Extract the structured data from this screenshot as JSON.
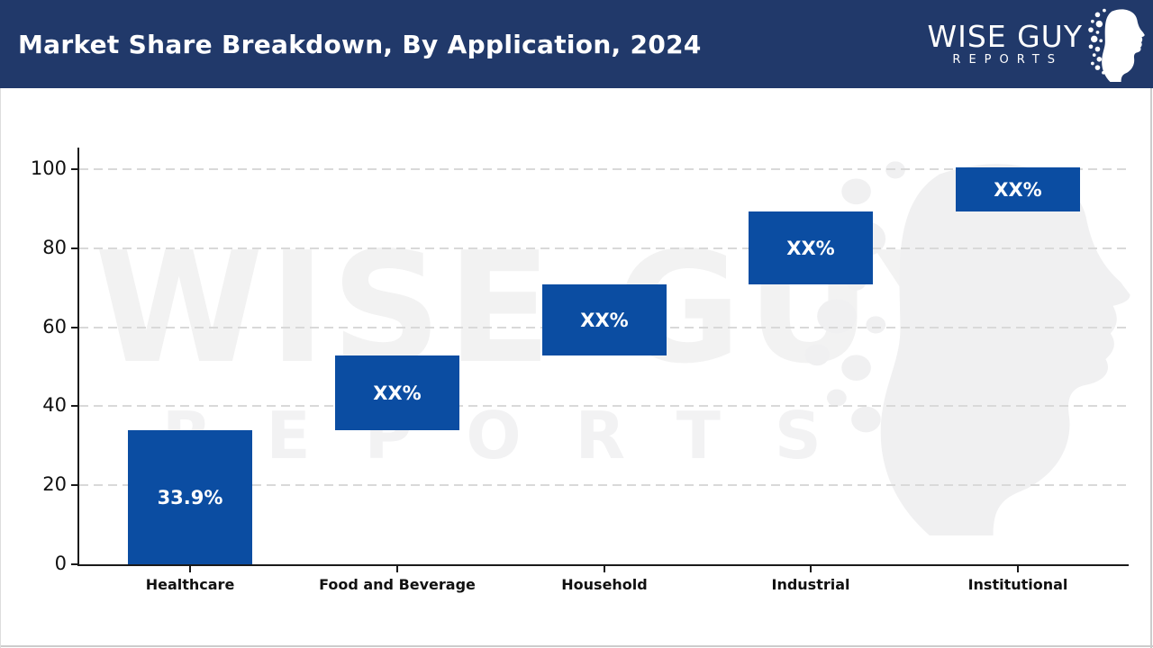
{
  "header": {
    "title": "Market Share Breakdown, By Application, 2024",
    "logo": {
      "line1": "WISE GUY",
      "line2": "REPORTS"
    }
  },
  "watermark": {
    "line1": "WISE GUY",
    "line2": "REPORTS"
  },
  "chart_data": {
    "type": "bar",
    "subtype": "waterfall-floating-bars",
    "title": "Market Share Breakdown, By Application, 2024",
    "categories": [
      "Healthcare",
      "Food and Beverage",
      "Household",
      "Industrial",
      "Institutional"
    ],
    "segments": [
      {
        "category": "Healthcare",
        "start": 0,
        "end": 33.9,
        "label": "33.9%"
      },
      {
        "category": "Food and Beverage",
        "start": 33.9,
        "end": 52.8,
        "label": "XX%"
      },
      {
        "category": "Household",
        "start": 52.8,
        "end": 70.8,
        "label": "XX%"
      },
      {
        "category": "Industrial",
        "start": 70.8,
        "end": 89.3,
        "label": "XX%"
      },
      {
        "category": "Institutional",
        "start": 89.3,
        "end": 100.4,
        "label": "XX%"
      }
    ],
    "yticks": [
      0,
      20,
      40,
      60,
      80,
      100
    ],
    "ylim": [
      0,
      105
    ],
    "xlabel": "",
    "ylabel": "",
    "grid": "horizontal-dashed",
    "legend": "none",
    "bar_color": "#0b4da2",
    "bar_label_color": "#ffffff"
  },
  "colors": {
    "header_bg": "#21396a",
    "bar": "#0b4da2",
    "axis": "#1a1a1a",
    "gridline": "#d9d9d9",
    "watermark": "#f2f2f2"
  }
}
